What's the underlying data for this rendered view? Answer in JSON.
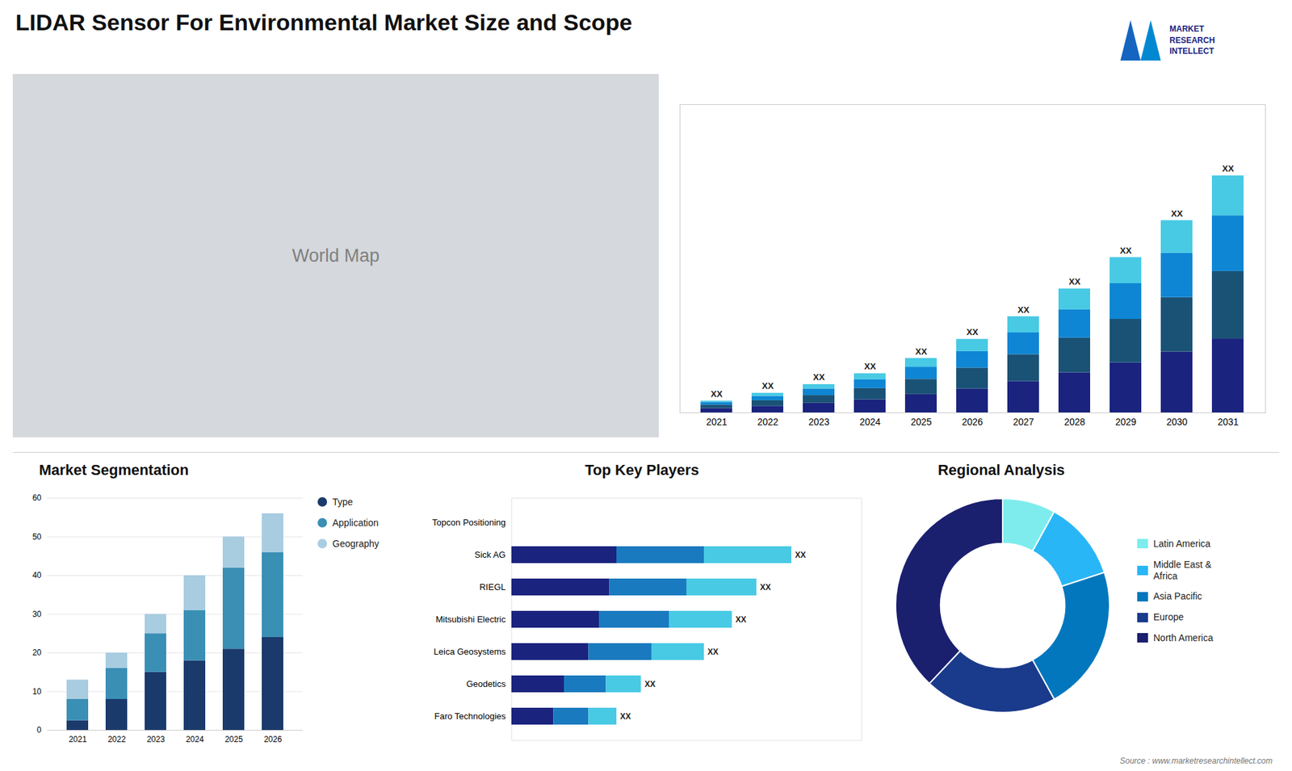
{
  "chart_data": [
    {
      "type": "bar",
      "title": "LIDAR Sensor For Environmental Market Size and Scope",
      "stacked": true,
      "categories": [
        2021,
        2022,
        2023,
        2024,
        2025,
        2026,
        2027,
        2028,
        2029,
        2030,
        2031
      ],
      "series": [
        {
          "color": "#1a237e",
          "values": [
            1.0,
            1.5,
            2.2,
            3.0,
            4.2,
            5.5,
            7.2,
            9.2,
            11.5,
            14.0,
            17.0
          ]
        },
        {
          "color": "#1a5276",
          "values": [
            0.8,
            1.3,
            1.8,
            2.6,
            3.5,
            4.8,
            6.2,
            8.0,
            10.0,
            12.5,
            15.5
          ]
        },
        {
          "color": "#0e86d4",
          "values": [
            0.6,
            1.0,
            1.5,
            2.0,
            2.8,
            3.8,
            5.0,
            6.5,
            8.2,
            10.2,
            12.8
          ]
        },
        {
          "color": "#48cae4",
          "values": [
            0.3,
            0.7,
            1.0,
            1.4,
            2.0,
            2.8,
            3.7,
            4.8,
            6.0,
            7.5,
            9.2
          ]
        }
      ],
      "annotations": [
        "XX",
        "XX",
        "XX",
        "XX",
        "XX",
        "XX",
        "XX",
        "XX",
        "XX",
        "XX",
        "XX"
      ],
      "ylim": [
        0,
        70.85
      ],
      "tick_labels": "x",
      "grid": false
    },
    {
      "type": "map",
      "title": "World Map",
      "color": "#d5d8dc",
      "annotations": [
        "MARKET\nRESEARCH\nINTELLECT",
        "Source : www.marketresearchintellect.com"
      ]
    },
    {
      "type": "bar",
      "title": "Market Segmentation",
      "stacked": true,
      "categories": [
        "2021",
        "2022",
        "2023",
        "2024",
        "2025",
        "2026"
      ],
      "series": [
        {
          "name": "Type",
          "color": "#1a3a6b",
          "values": [
            2.5,
            8.0,
            15.0,
            18.0,
            21.0,
            24.0
          ]
        },
        {
          "name": "Application",
          "color": "#3a8fb5",
          "values": [
            5.5,
            8.0,
            10.0,
            13.0,
            21.0,
            22.0
          ]
        },
        {
          "name": "Geography",
          "color": "#a8cce0",
          "values": [
            5.0,
            4.0,
            5.0,
            9.0,
            8.0,
            10.0
          ]
        }
      ],
      "ylim": [
        0,
        60
      ],
      "yticks": [
        0,
        10,
        20,
        30,
        40,
        50,
        60
      ],
      "grid": true,
      "legend": "right"
    },
    {
      "type": "bar",
      "orientation": "horizontal",
      "title": "Top Key Players",
      "stacked": true,
      "categories": [
        "Topcon Positioning",
        "Sick AG",
        "RIEGL",
        "Mitsubishi Electric",
        "Leica Geosystems",
        "Geodetics",
        "Faro Technologies"
      ],
      "series": [
        {
          "color": "#1a237e",
          "values": [
            0,
            3.0,
            2.8,
            2.5,
            2.2,
            1.5,
            1.2
          ]
        },
        {
          "color": "#1a7abf",
          "values": [
            0,
            2.5,
            2.2,
            2.0,
            1.8,
            1.2,
            1.0
          ]
        },
        {
          "color": "#48cae4",
          "values": [
            0,
            2.5,
            2.0,
            1.8,
            1.5,
            1.0,
            0.8
          ]
        }
      ],
      "annotations": [
        null,
        "XX",
        "XX",
        "XX",
        "XX",
        "XX",
        "XX"
      ],
      "xlim": [
        0,
        10
      ],
      "tick_labels": "y",
      "grid": false
    },
    {
      "type": "pie",
      "title": "Regional Analysis",
      "categories": [
        "Latin America",
        "Middle East &\nAfrica",
        "Asia Pacific",
        "Europe",
        "North America"
      ],
      "values": [
        8,
        12,
        22,
        20,
        38
      ],
      "colors": [
        "#7eeced",
        "#29b6f6",
        "#0277bd",
        "#1a3a8c",
        "#1a1f6e"
      ],
      "legend": "right"
    }
  ]
}
